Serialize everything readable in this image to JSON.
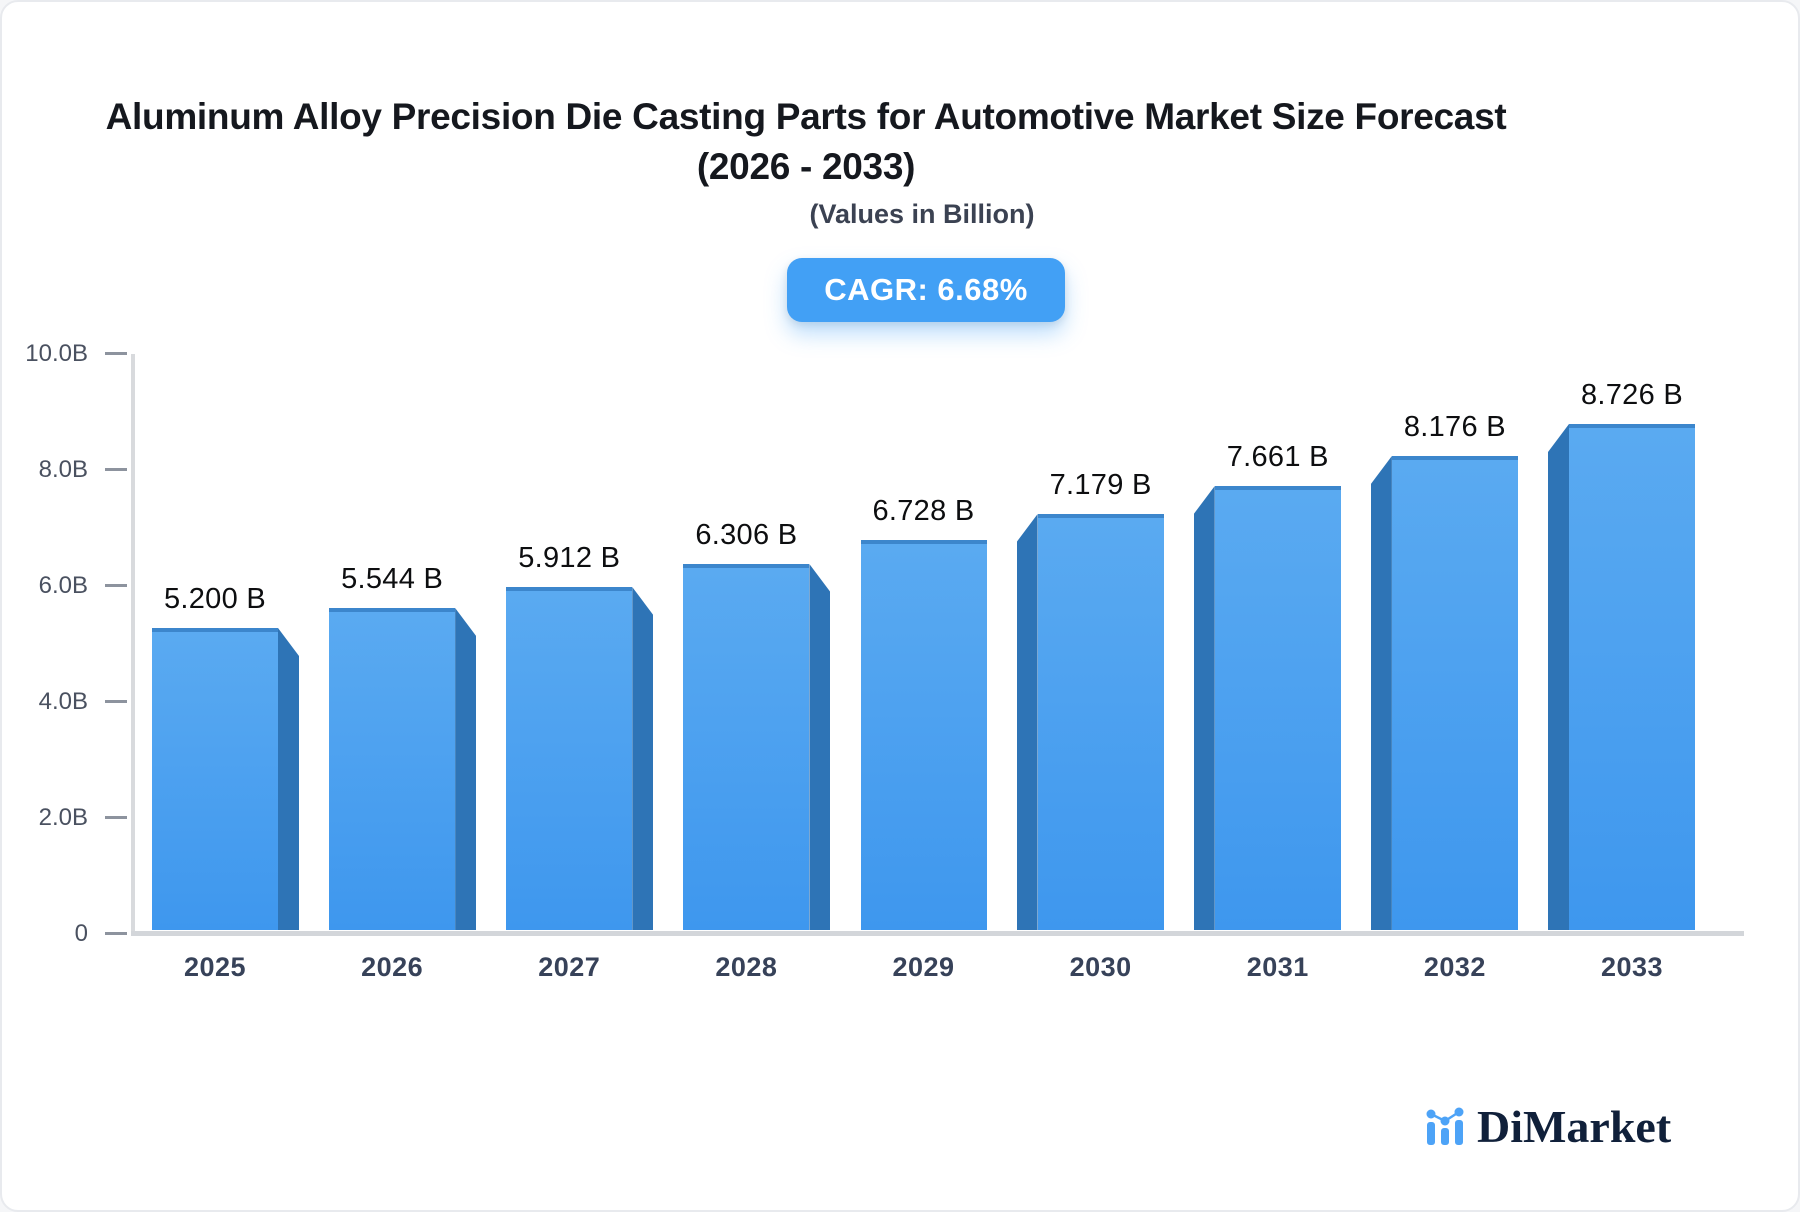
{
  "header": {
    "title_line1": "Aluminum Alloy Precision Die Casting Parts for Automotive Market Size Forecast",
    "title_line2": "(2026 - 2033)",
    "subtitle": "(Values in Billion)",
    "cagr_badge": "CAGR: 6.68%"
  },
  "chart_data": {
    "type": "bar",
    "title": "Aluminum Alloy Precision Die Casting Parts for Automotive Market Size Forecast (2026 - 2033)",
    "subtitle": "(Values in Billion)",
    "cagr_percent": 6.68,
    "categories": [
      "2025",
      "2026",
      "2027",
      "2028",
      "2029",
      "2030",
      "2031",
      "2032",
      "2033"
    ],
    "values": [
      5.2,
      5.544,
      5.912,
      6.306,
      6.728,
      7.179,
      7.661,
      8.176,
      8.726
    ],
    "bar_labels": [
      "5.200 B",
      "5.544 B",
      "5.912 B",
      "6.306 B",
      "6.728 B",
      "7.179 B",
      "7.661 B",
      "8.176 B",
      "8.726 B"
    ],
    "unit": "Billion",
    "xlabel": "",
    "ylabel": "",
    "ylim": [
      0,
      10
    ],
    "yticks": [
      {
        "value": 10,
        "label": "10.0B"
      },
      {
        "value": 8,
        "label": "8.0B"
      },
      {
        "value": 6,
        "label": "6.0B"
      },
      {
        "value": 4,
        "label": "4.0B"
      },
      {
        "value": 2,
        "label": "2.0B"
      },
      {
        "value": 0,
        "label": "0"
      }
    ],
    "grid": false,
    "legend": "none",
    "style": "3d-bars, perspective toward center (side panels face right for left bars, left for right bars)",
    "colors": {
      "bar_face_top": "#5aaaf1",
      "bar_face_bottom": "#3e97ee",
      "bar_face_edge": "#3c86cc",
      "bar_side": "#2e74b6",
      "badge_bg": "#42a0f5",
      "axis_gray": "#d3d6da",
      "brand_blue": "#4da3f7",
      "brand_navy": "#10203a"
    }
  },
  "footer": {
    "brand_name": "DiMarket"
  }
}
